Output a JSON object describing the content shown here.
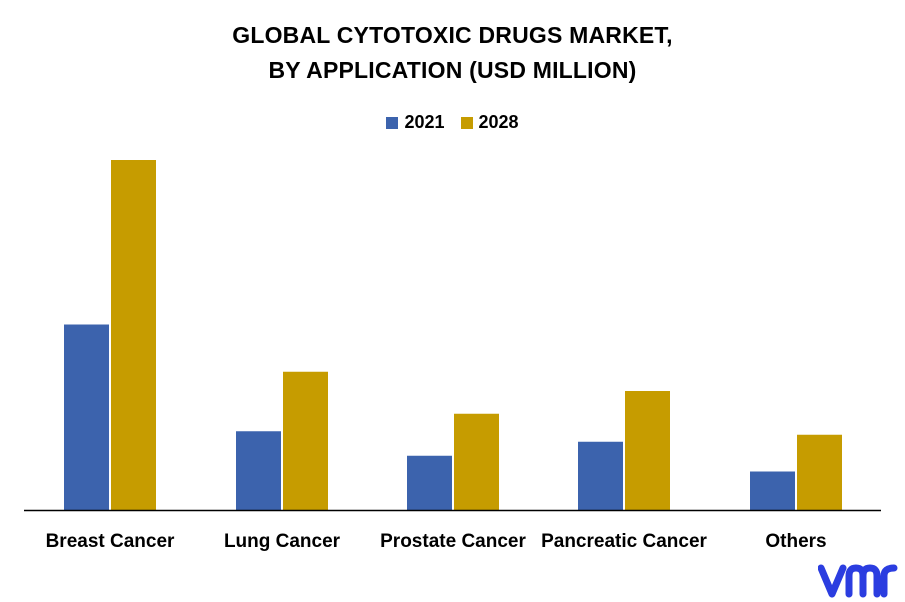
{
  "chart_data": {
    "type": "bar",
    "title_lines": [
      "GLOBAL CYTOTOXIC DRUGS MARKET,",
      "BY APPLICATION (USD MILLION)"
    ],
    "categories": [
      "Breast Cancer",
      "Lung Cancer",
      "Prostate Cancer",
      "Pancreatic Cancer",
      "Others"
    ],
    "series": [
      {
        "name": "2021",
        "color": "#3c63ad",
        "values": [
          53,
          22.5,
          15.5,
          19.5,
          11
        ]
      },
      {
        "name": "2028",
        "color": "#c69c00",
        "values": [
          100,
          39.5,
          27.5,
          34,
          21.5
        ]
      }
    ],
    "ylim": [
      0,
      100
    ],
    "grid": false,
    "legend_position": "top-center",
    "y_axis_visible": false
  },
  "branding": {
    "logo_icon": "vmr-logo-icon",
    "logo_color": "#2b3de0"
  }
}
